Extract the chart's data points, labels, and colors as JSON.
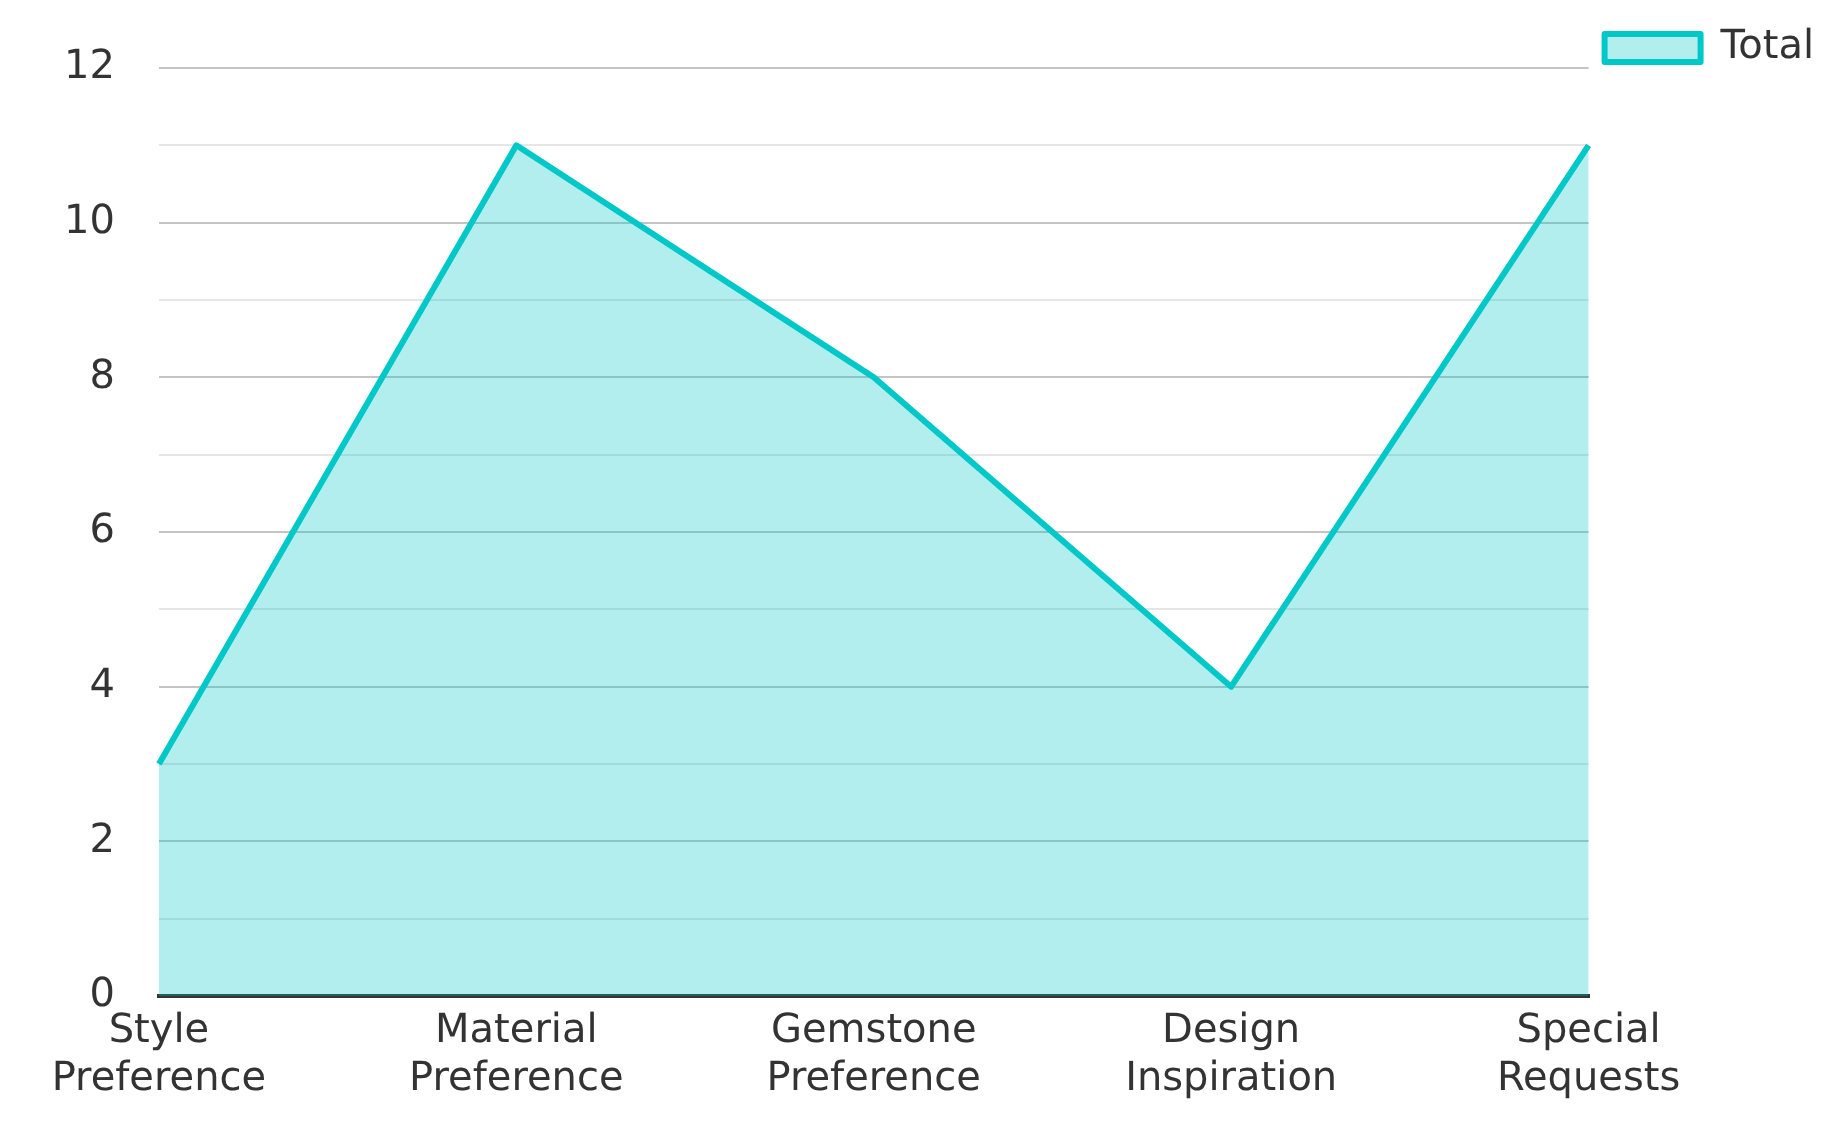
{
  "chart_data": {
    "type": "area",
    "categories": [
      "Style Preference",
      "Material Preference",
      "Gemstone Preference",
      "Design Inspiration",
      "Special Requests"
    ],
    "series": [
      {
        "name": "Total",
        "color": "#00c8c8",
        "values": [
          3,
          11,
          8,
          4,
          11
        ]
      }
    ],
    "ylim": [
      0,
      12
    ],
    "yticks": [
      0,
      {
        "value": 1,
        "label": null
      },
      2,
      {
        "value": 3,
        "label": null
      },
      4,
      {
        "value": 5,
        "label": null
      },
      6,
      {
        "value": 7,
        "label": null
      },
      8,
      {
        "value": 9,
        "label": null
      },
      10,
      {
        "value": 11,
        "label": null
      },
      12
    ],
    "grid": "y",
    "legend": "top right",
    "marker": "none"
  }
}
